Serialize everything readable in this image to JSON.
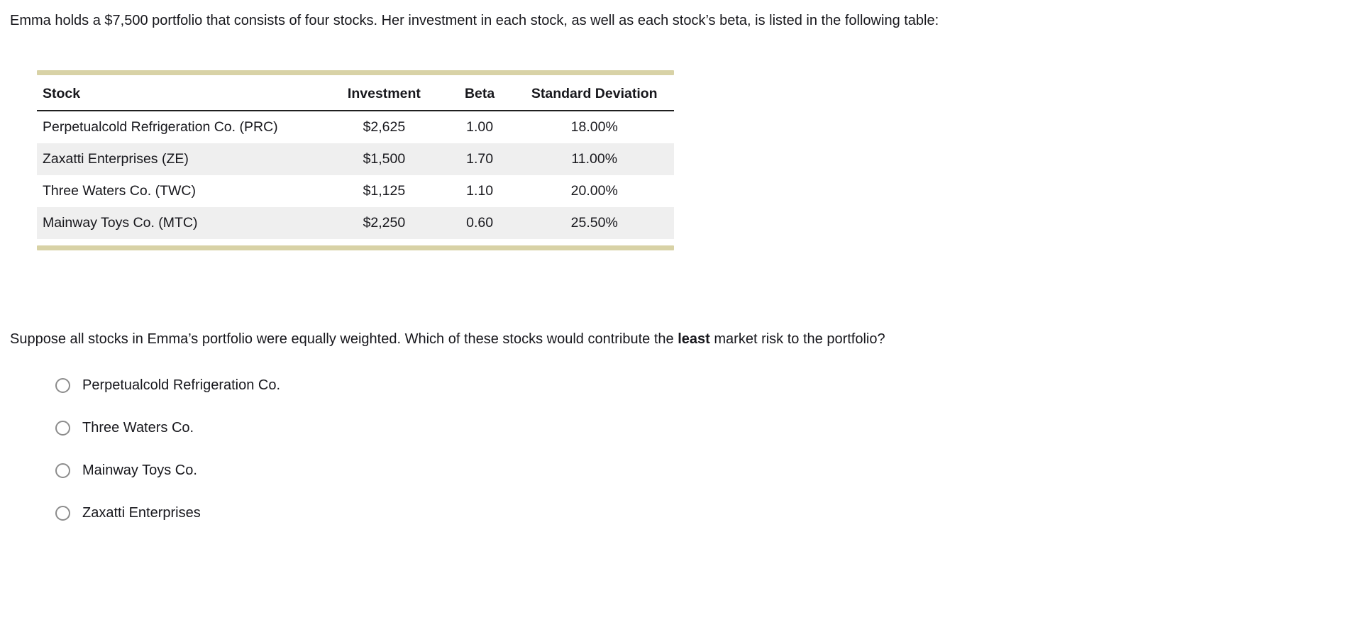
{
  "intro": "Emma holds a $7,500 portfolio that consists of four stocks. Her investment in each stock, as well as each stock’s beta, is listed in the following table:",
  "table": {
    "headers": {
      "stock": "Stock",
      "investment": "Investment",
      "beta": "Beta",
      "std_dev": "Standard Deviation"
    },
    "rows": [
      {
        "stock": "Perpetualcold Refrigeration Co. (PRC)",
        "investment": "$2,625",
        "beta": "1.00",
        "std_dev": "18.00%"
      },
      {
        "stock": "Zaxatti Enterprises (ZE)",
        "investment": "$1,500",
        "beta": "1.70",
        "std_dev": "11.00%"
      },
      {
        "stock": "Three Waters Co. (TWC)",
        "investment": "$1,125",
        "beta": "1.10",
        "std_dev": "20.00%"
      },
      {
        "stock": "Mainway Toys Co. (MTC)",
        "investment": "$2,250",
        "beta": "0.60",
        "std_dev": "25.50%"
      }
    ]
  },
  "question": {
    "part1": "Suppose all stocks in Emma’s portfolio were equally weighted. Which of these stocks would contribute the ",
    "bold": "least",
    "part2": " market risk to the portfolio?"
  },
  "options": [
    {
      "label": "Perpetualcold Refrigeration Co.",
      "selected": false
    },
    {
      "label": "Three Waters Co.",
      "selected": false
    },
    {
      "label": "Mainway Toys Co.",
      "selected": false
    },
    {
      "label": "Zaxatti Enterprises",
      "selected": false
    }
  ],
  "colors": {
    "accent_bar": "#d8d2a6",
    "row_alt": "#efefef",
    "header_rule": "#1f1f1f",
    "text": "#17171c",
    "radio_border": "#8c8c8c"
  }
}
